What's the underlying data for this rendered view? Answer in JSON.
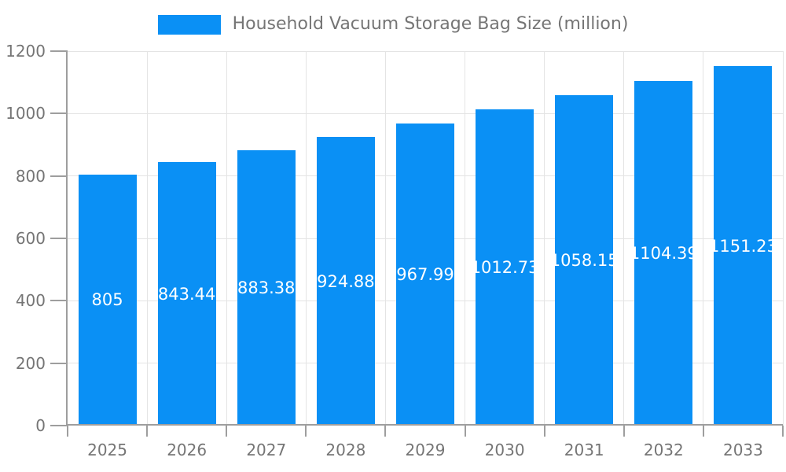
{
  "chart_data": {
    "type": "bar",
    "title": "Household Vacuum Storage Bag Size (million)",
    "categories": [
      "2025",
      "2026",
      "2027",
      "2028",
      "2029",
      "2030",
      "2031",
      "2032",
      "2033"
    ],
    "values": [
      805,
      843.44,
      883.38,
      924.88,
      967.99,
      1012.73,
      1058.15,
      1104.39,
      1151.23
    ],
    "bar_labels": [
      "805",
      "843.44",
      "883.38",
      "924.88",
      "967.99",
      "1012.73",
      "1058.15",
      "1104.39",
      "1151.23"
    ],
    "xlabel": "",
    "ylabel": "",
    "ylim": [
      0,
      1200
    ],
    "ytick_interval": 200,
    "ytick_values": [
      0,
      200,
      400,
      600,
      800,
      1000,
      1200
    ],
    "ytick_labels": [
      "0",
      "200",
      "400",
      "600",
      "800",
      "1000",
      "1200"
    ],
    "grid": true,
    "legend_position": "top-center",
    "colors": {
      "bar": "#0a90f5",
      "axis_text": "#757575",
      "grid_line": "#e4e4e4",
      "axis_line": "#9e9e9e",
      "bar_label_text": "#ffffff",
      "background": "#ffffff"
    }
  }
}
